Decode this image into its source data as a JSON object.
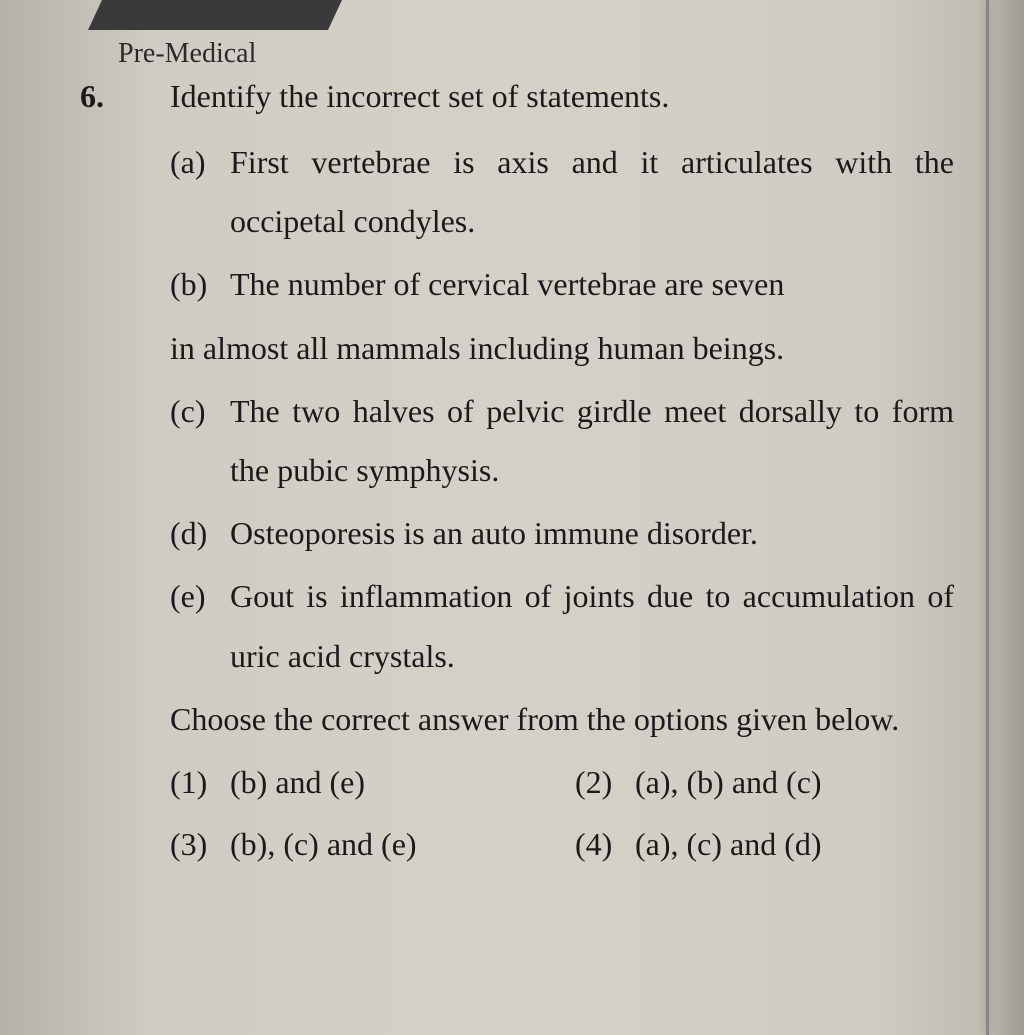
{
  "header": {
    "subtitle": "Pre-Medical"
  },
  "question": {
    "number": "6.",
    "text": "Identify the incorrect set of statements."
  },
  "statements": [
    {
      "label": "(a)",
      "text": "First vertebrae is axis and it articulates with the occipetal condyles."
    },
    {
      "label": "(b)",
      "text_line1": "The number of cervical vertebrae are seven",
      "text_line2": "in   almost all mammals including human beings."
    },
    {
      "label": "(c)",
      "text": "The two halves of pelvic girdle meet dorsally to form the pubic symphysis."
    },
    {
      "label": "(d)",
      "text": "Osteoporesis is an auto immune disorder."
    },
    {
      "label": "(e)",
      "text": "Gout is inflammation of joints due to accumulation of uric acid crystals."
    }
  ],
  "instruction": "Choose the correct answer from the options given below.",
  "options": [
    {
      "num": "(1)",
      "text": "(b) and (e)"
    },
    {
      "num": "(2)",
      "text": "(a), (b) and (c)"
    },
    {
      "num": "(3)",
      "text": "(b), (c) and (e)"
    },
    {
      "num": "(4)",
      "text": "(a), (c) and (d)"
    }
  ],
  "colors": {
    "text": "#1a1a1a",
    "background": "#d0ccc4",
    "header_bar": "#3a3a3a"
  },
  "typography": {
    "body_fontsize": 32,
    "subtitle_fontsize": 28,
    "line_height": 1.85,
    "font_family": "Georgia, serif"
  }
}
